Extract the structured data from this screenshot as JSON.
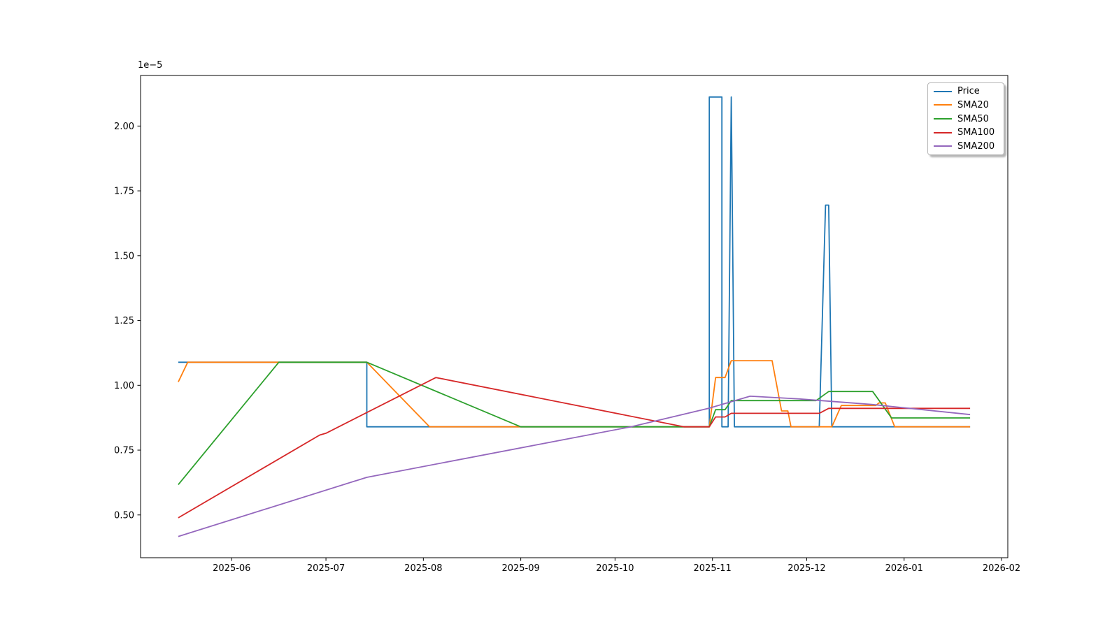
{
  "figure": {
    "background": "#ffffff",
    "frame_color": "#000000"
  },
  "chart_data": {
    "type": "line",
    "title": "",
    "xlabel": "",
    "ylabel": "",
    "grid": false,
    "offset_text": "1e−5",
    "y_unit_note": "y values are in units of 1e-5",
    "x_axis": {
      "ticks": [
        "2025-06",
        "2025-07",
        "2025-08",
        "2025-09",
        "2025-10",
        "2025-11",
        "2025-12",
        "2026-01",
        "2026-02"
      ],
      "lim": [
        "2025-05-03",
        "2026-02-03"
      ]
    },
    "y_axis": {
      "ticks": [
        "0.50",
        "0.75",
        "1.00",
        "1.25",
        "1.50",
        "1.75",
        "2.00"
      ],
      "lim": [
        0.335,
        2.195
      ]
    },
    "legend": {
      "position": "upper right",
      "entries": [
        "Price",
        "SMA20",
        "SMA50",
        "SMA100",
        "SMA200"
      ]
    },
    "series": [
      {
        "name": "Price",
        "color": "#1f77b4",
        "points": [
          [
            "2025-05-15",
            1.089
          ],
          [
            "2025-07-14",
            1.089
          ],
          [
            "2025-07-14",
            0.84
          ],
          [
            "2025-10-31",
            0.84
          ],
          [
            "2025-10-31",
            2.112
          ],
          [
            "2025-11-04",
            2.112
          ],
          [
            "2025-11-04",
            0.84
          ],
          [
            "2025-11-06",
            0.84
          ],
          [
            "2025-11-07",
            2.112
          ],
          [
            "2025-11-08",
            0.84
          ],
          [
            "2025-12-05",
            0.84
          ],
          [
            "2025-12-07",
            1.695
          ],
          [
            "2025-12-08",
            1.695
          ],
          [
            "2025-12-09",
            0.84
          ],
          [
            "2026-01-22",
            0.84
          ]
        ]
      },
      {
        "name": "SMA20",
        "color": "#ff7f0e",
        "points": [
          [
            "2025-05-15",
            1.013
          ],
          [
            "2025-05-18",
            1.089
          ],
          [
            "2025-07-14",
            1.089
          ],
          [
            "2025-08-03",
            0.84
          ],
          [
            "2025-10-31",
            0.84
          ],
          [
            "2025-11-02",
            1.03
          ],
          [
            "2025-11-05",
            1.03
          ],
          [
            "2025-11-07",
            1.095
          ],
          [
            "2025-11-20",
            1.095
          ],
          [
            "2025-11-23",
            0.901
          ],
          [
            "2025-11-25",
            0.901
          ],
          [
            "2025-11-26",
            0.84
          ],
          [
            "2025-12-09",
            0.84
          ],
          [
            "2025-12-12",
            0.922
          ],
          [
            "2025-12-23",
            0.922
          ],
          [
            "2025-12-24",
            0.932
          ],
          [
            "2025-12-26",
            0.932
          ],
          [
            "2025-12-29",
            0.84
          ],
          [
            "2026-01-22",
            0.84
          ]
        ]
      },
      {
        "name": "SMA50",
        "color": "#2ca02c",
        "points": [
          [
            "2025-05-15",
            0.617
          ],
          [
            "2025-06-16",
            1.089
          ],
          [
            "2025-07-14",
            1.089
          ],
          [
            "2025-09-01",
            0.84
          ],
          [
            "2025-10-31",
            0.84
          ],
          [
            "2025-11-02",
            0.906
          ],
          [
            "2025-11-05",
            0.906
          ],
          [
            "2025-11-07",
            0.941
          ],
          [
            "2025-12-04",
            0.941
          ],
          [
            "2025-12-08",
            0.976
          ],
          [
            "2025-12-22",
            0.976
          ],
          [
            "2025-12-28",
            0.874
          ],
          [
            "2026-01-22",
            0.874
          ]
        ]
      },
      {
        "name": "SMA100",
        "color": "#d62728",
        "points": [
          [
            "2025-05-15",
            0.489
          ],
          [
            "2025-06-29",
            0.808
          ],
          [
            "2025-07-01",
            0.815
          ],
          [
            "2025-08-05",
            1.03
          ],
          [
            "2025-10-23",
            0.84
          ],
          [
            "2025-10-31",
            0.84
          ],
          [
            "2025-11-02",
            0.878
          ],
          [
            "2025-11-05",
            0.878
          ],
          [
            "2025-11-07",
            0.892
          ],
          [
            "2025-12-05",
            0.892
          ],
          [
            "2025-12-08",
            0.911
          ],
          [
            "2026-01-22",
            0.911
          ]
        ]
      },
      {
        "name": "SMA200",
        "color": "#9467bd",
        "points": [
          [
            "2025-05-15",
            0.417
          ],
          [
            "2025-07-14",
            0.645
          ],
          [
            "2025-10-06",
            0.84
          ],
          [
            "2025-10-31",
            0.912
          ],
          [
            "2025-11-13",
            0.958
          ],
          [
            "2025-11-28",
            0.948
          ],
          [
            "2025-12-22",
            0.926
          ],
          [
            "2026-01-22",
            0.887
          ]
        ]
      }
    ]
  }
}
